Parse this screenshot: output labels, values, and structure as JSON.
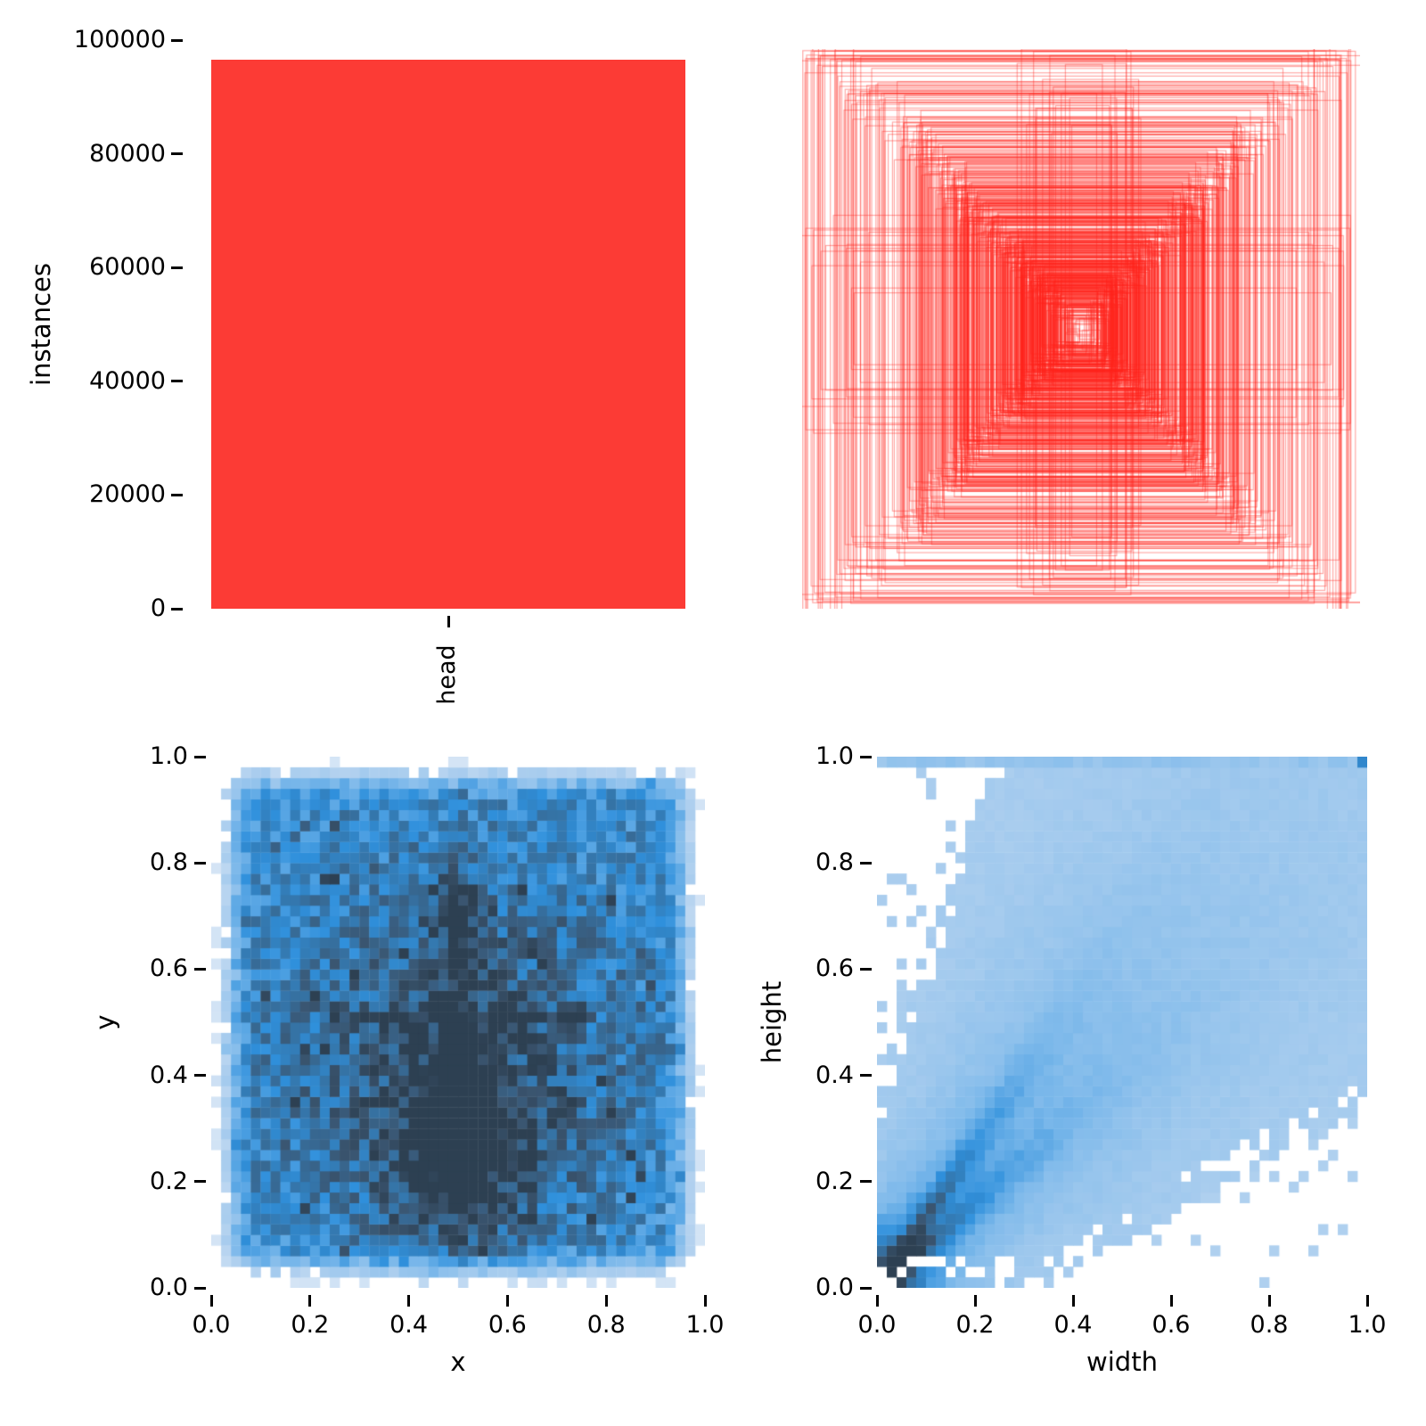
{
  "figure": {
    "background": "#ffffff",
    "text_color": "#000000"
  },
  "chart_data": [
    {
      "id": "instances-per-class",
      "type": "bar",
      "categories": [
        "head"
      ],
      "values": [
        96500
      ],
      "xlabel": "",
      "ylabel": "instances",
      "ylim": [
        0,
        100000
      ],
      "yticks": [
        {
          "v": 0,
          "label": "0"
        },
        {
          "v": 20000,
          "label": "20000"
        },
        {
          "v": 40000,
          "label": "40000"
        },
        {
          "v": 60000,
          "label": "60000"
        },
        {
          "v": 80000,
          "label": "80000"
        },
        {
          "v": 100000,
          "label": "100000"
        }
      ],
      "bar_color": "#fc3b35",
      "grid": false,
      "legend": null
    },
    {
      "id": "bbox-outline-overlay",
      "type": "scatter",
      "description": "hundreds of red bounding-box outlines overlaid, roughly concentric about the panel center",
      "color": "rgba(255,35,28,0.4)",
      "line_width": 1.15,
      "seed": 5,
      "center": [
        0.5,
        0.5
      ],
      "center_jitter": 0.045,
      "aspect_jitter": [
        0.95,
        1.3
      ],
      "groups": [
        {
          "n": 230,
          "w": [
            0.06,
            0.3,
            1.3
          ],
          "h": "match"
        },
        {
          "n": 240,
          "w": [
            0.12,
            0.62,
            1.4
          ],
          "h": "match"
        },
        {
          "n": 140,
          "w": [
            0.3,
            1.0,
            1.1
          ],
          "h": "match"
        },
        {
          "n": 10,
          "w": [
            0.02,
            0.05,
            1.0
          ],
          "h": "match"
        },
        {
          "n": 18,
          "w": [
            0.06,
            0.2,
            1.0
          ],
          "h": [
            0.7,
            1.0,
            1.0
          ]
        },
        {
          "n": 14,
          "w": [
            0.75,
            1.0,
            1.0
          ],
          "h": [
            0.12,
            0.4,
            1.0
          ]
        }
      ]
    },
    {
      "id": "bbox-center-xy-density",
      "type": "heatmap",
      "xlabel": "x",
      "ylabel": "y",
      "xlim": [
        0,
        1
      ],
      "ylim": [
        0,
        1
      ],
      "bins": 50,
      "seed": 11,
      "grid": false,
      "xticks": [
        {
          "v": 0.0,
          "label": "0.0"
        },
        {
          "v": 0.2,
          "label": "0.2"
        },
        {
          "v": 0.4,
          "label": "0.4"
        },
        {
          "v": 0.6,
          "label": "0.6"
        },
        {
          "v": 0.8,
          "label": "0.8"
        },
        {
          "v": 1.0,
          "label": "1.0"
        }
      ],
      "yticks": [
        {
          "v": 0.0,
          "label": "0.0"
        },
        {
          "v": 0.2,
          "label": "0.2"
        },
        {
          "v": 0.4,
          "label": "0.4"
        },
        {
          "v": 0.6,
          "label": "0.6"
        },
        {
          "v": 0.8,
          "label": "0.8"
        },
        {
          "v": 1.0,
          "label": "1.0"
        }
      ],
      "colormap": [
        [
          0.0,
          "#dce9f7"
        ],
        [
          0.16,
          "#b2d1ef"
        ],
        [
          0.34,
          "#79b7ea"
        ],
        [
          0.52,
          "#2f90dc"
        ],
        [
          0.7,
          "#366f9e"
        ],
        [
          0.85,
          "#3a5570"
        ],
        [
          1.0,
          "#2d4052"
        ]
      ],
      "model": {
        "kind": "xy",
        "base": {
          "amp": 0.55,
          "edge": 0.09,
          "g_center": [
            0.5,
            0.47
          ],
          "g_sigma": [
            0.34,
            0.33
          ],
          "g_mix": [
            0.75,
            0.55
          ]
        },
        "hline": {
          "y": 0.51,
          "sigma": 0.012,
          "x0": 0.2,
          "x1": 0.78,
          "amp": 0.3
        },
        "vline": {
          "x": 0.5,
          "sigma": 0.016,
          "y0": 0.13,
          "y1": 0.8,
          "amp": 0.27
        },
        "blob_low": {
          "c": [
            0.5,
            0.3
          ],
          "sx": 0.052,
          "widen": 0.11,
          "sy": 0.13,
          "amp": 0.6
        },
        "blob_mid": {
          "c": [
            0.5,
            0.33
          ],
          "sx": 0.19,
          "sy": 0.15,
          "amp": 0.22
        },
        "blob_up": {
          "c": [
            0.5,
            0.7
          ],
          "sx": 0.045,
          "sy": 0.06,
          "amp": 0.3
        },
        "noise": [
          0.7,
          1.32
        ],
        "gamma": 0.9
      }
    },
    {
      "id": "bbox-width-height-density",
      "type": "heatmap",
      "xlabel": "width",
      "ylabel": "height",
      "xlim": [
        0,
        1
      ],
      "ylim": [
        0,
        1
      ],
      "bins": 50,
      "seed": 23,
      "grid": false,
      "xticks": [
        {
          "v": 0.0,
          "label": "0.0"
        },
        {
          "v": 0.2,
          "label": "0.2"
        },
        {
          "v": 0.4,
          "label": "0.4"
        },
        {
          "v": 0.6,
          "label": "0.6"
        },
        {
          "v": 0.8,
          "label": "0.8"
        },
        {
          "v": 1.0,
          "label": "1.0"
        }
      ],
      "yticks": [
        {
          "v": 0.0,
          "label": "0.0"
        },
        {
          "v": 0.2,
          "label": "0.2"
        },
        {
          "v": 0.4,
          "label": "0.4"
        },
        {
          "v": 0.6,
          "label": "0.6"
        },
        {
          "v": 0.8,
          "label": "0.8"
        },
        {
          "v": 1.0,
          "label": "1.0"
        }
      ],
      "colormap": [
        [
          0.0,
          "#dce9f7"
        ],
        [
          0.16,
          "#b2d1ef"
        ],
        [
          0.34,
          "#79b7ea"
        ],
        [
          0.52,
          "#2f90dc"
        ],
        [
          0.7,
          "#366f9e"
        ],
        [
          0.85,
          "#3a5570"
        ],
        [
          1.0,
          "#2d4052"
        ]
      ],
      "model": {
        "kind": "wh",
        "base_amp": 0.17,
        "lower_bound": {
          "start": 0.34,
          "slope": 0.52
        },
        "upper_bound": {
          "intercept": 0.38,
          "slope": 2.6
        },
        "band": {
          "k": 1.02,
          "amp": 0.33,
          "decay": 0.55,
          "w0": 0.05,
          "w1": 0.3
        },
        "ridge1": {
          "k": 1.35,
          "amp": 0.95,
          "decay": 0.2,
          "w0": 0.013,
          "w1": 0.06
        },
        "ridge2": {
          "k": 0.8,
          "amp": 0.62,
          "decay": 0.19,
          "w0": 0.011,
          "w1": 0.05
        },
        "peak": {
          "amp": 1.15,
          "decay": 0.055
        },
        "top_row_amp": 0.22,
        "corner_amp": 0.55,
        "noise": [
          0.93,
          1.07
        ],
        "gamma": 0.95
      }
    }
  ]
}
